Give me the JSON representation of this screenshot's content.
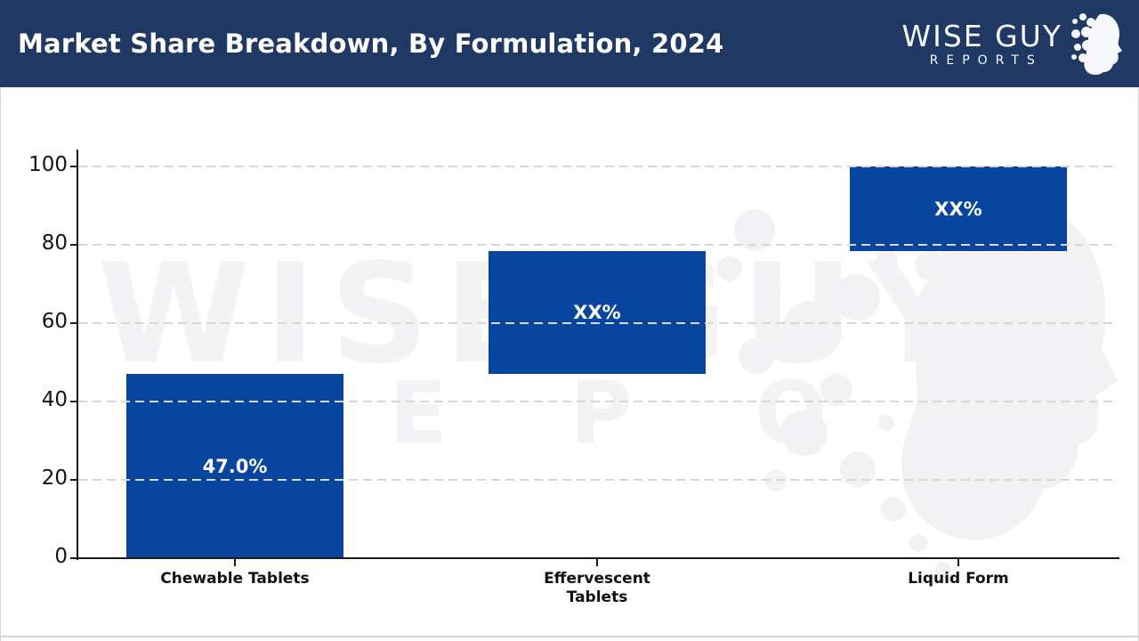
{
  "header": {
    "title": "Market Share Breakdown, By Formulation, 2024",
    "logo": {
      "line1": "WISE GUY",
      "line2": "REPORTS"
    }
  },
  "watermark": {
    "line1": "WISE GUY",
    "line2": "R E P O R T S"
  },
  "chart_data": {
    "type": "bar",
    "subtype": "floating-segment waterfall of market share percentages",
    "title": "Market Share Breakdown, By Formulation, 2024",
    "categories": [
      "Chewable Tablets",
      "Effervescent Tablets",
      "Liquid Form"
    ],
    "category_lines": [
      [
        "Chewable Tablets"
      ],
      [
        "Effervescent",
        "Tablets"
      ],
      [
        "Liquid Form"
      ]
    ],
    "segments": [
      {
        "category": "Chewable Tablets",
        "start": 0,
        "end": 47,
        "value": 47.0,
        "label": "47.0%"
      },
      {
        "category": "Effervescent Tablets",
        "start": 47,
        "end": 78.4,
        "value": 31.4,
        "label": "XX%"
      },
      {
        "category": "Liquid Form",
        "start": 78.4,
        "end": 100,
        "value": 21.6,
        "label": "XX%"
      }
    ],
    "yticks": [
      0,
      20,
      40,
      60,
      80,
      100
    ],
    "ylim": [
      0,
      104
    ],
    "xlabel": "",
    "ylabel": "",
    "grid": "horizontal dashed, drawn over bars",
    "legend": "none"
  },
  "colors": {
    "header_bg": "#1f3864",
    "bar": "#07459e",
    "grid": "#d8d8d8",
    "axis": "#1a1a1a",
    "title_text": "#ffffff",
    "bar_label_text": "#ffffff",
    "tick_text": "#141414",
    "watermark": "#f3f3f6"
  }
}
